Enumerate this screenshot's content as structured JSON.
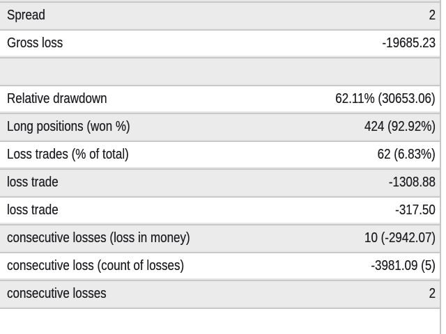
{
  "report_table": {
    "rows": [
      {
        "label": "Spread",
        "value": "2",
        "variant": "gray"
      },
      {
        "label": "Gross loss",
        "value": "-19685.23",
        "variant": "white"
      },
      {
        "label": "",
        "value": "",
        "variant": "gray"
      },
      {
        "label": "Relative drawdown",
        "value": "62.11% (30653.06)",
        "variant": "white"
      },
      {
        "label": "Long positions (won %)",
        "value": "424 (92.92%)",
        "variant": "gray"
      },
      {
        "label": "Loss trades (% of total)",
        "value": "62 (6.83%)",
        "variant": "white"
      },
      {
        "label": "loss trade",
        "value": "-1308.88",
        "variant": "gray"
      },
      {
        "label": "loss trade",
        "value": "-317.50",
        "variant": "white"
      },
      {
        "label": "consecutive losses (loss in money)",
        "value": "10 (-2942.07)",
        "variant": "gray"
      },
      {
        "label": "consecutive loss (count of losses)",
        "value": "-3981.09 (5)",
        "variant": "white"
      },
      {
        "label": "consecutive losses",
        "value": "2",
        "variant": "gray"
      }
    ],
    "colors": {
      "row_gray": "#ebebeb",
      "row_white": "#ffffff",
      "separator_light": "#e8e8e8",
      "separator_dark": "#c8c8c8",
      "right_border": "#c6c6c6",
      "text": "#1c1c20",
      "page_background": "#ffffff"
    }
  }
}
